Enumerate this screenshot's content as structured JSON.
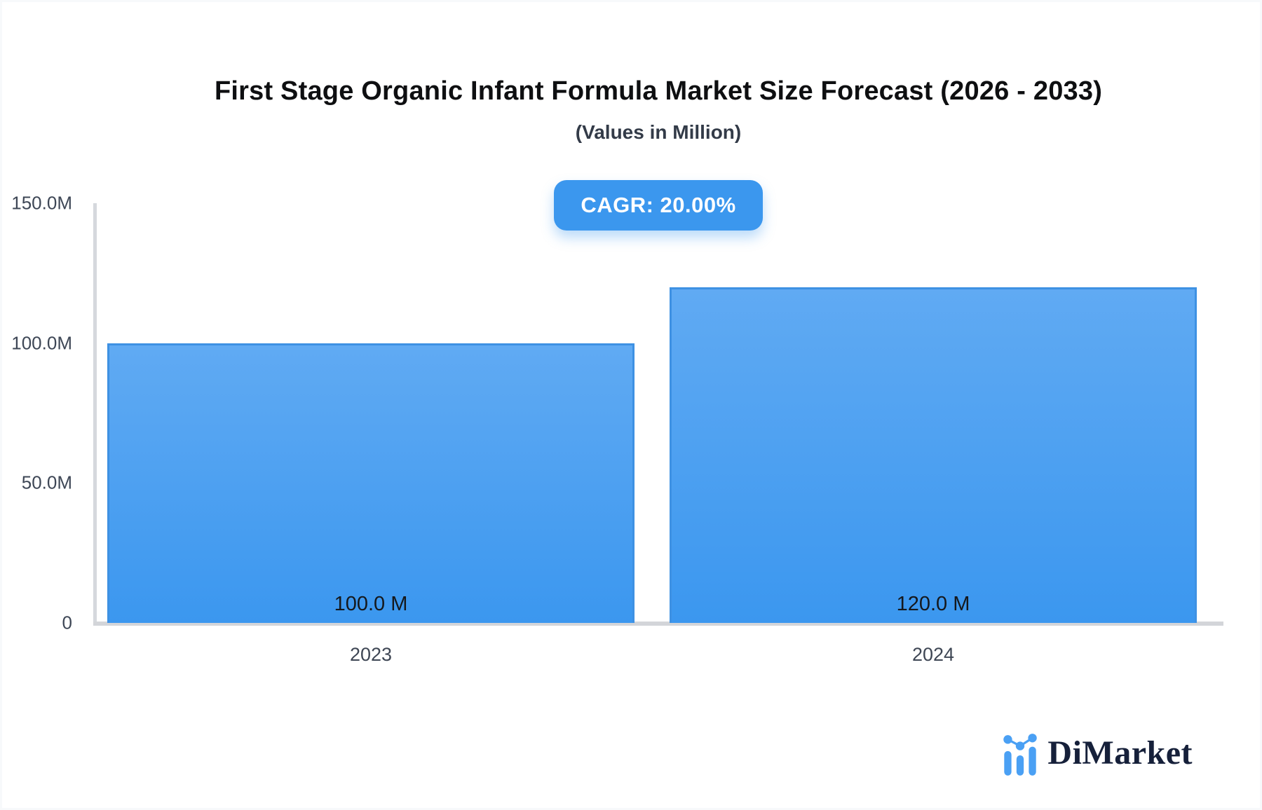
{
  "page": {
    "background": "#ffffff",
    "border_color": "#f7f9fb"
  },
  "header": {
    "title": "First Stage Organic Infant Formula Market Size Forecast (2026 - 2033)",
    "subtitle": "(Values in Million)"
  },
  "badge": {
    "label": "CAGR: 20.00%",
    "background": "#3b97ee",
    "text_color": "#ffffff"
  },
  "chart_data": {
    "type": "bar",
    "title": "First Stage Organic Infant Formula Market Size Forecast (2026 - 2033)",
    "subtitle": "(Values in Million)",
    "unit": "Million",
    "cagr_percent": 20.0,
    "categories": [
      "2023",
      "2024"
    ],
    "values": [
      100.0,
      120.0
    ],
    "bars": [
      {
        "category": "2023",
        "value": 100.0,
        "label": "100.0 M"
      },
      {
        "category": "2024",
        "value": 120.0,
        "label": "120.0 M"
      }
    ],
    "y_axis": {
      "ticks": [
        {
          "label": "150.0M",
          "value": 150,
          "dash": false
        },
        {
          "label": "100.0M",
          "value": 100,
          "dash": false
        },
        {
          "label": "50.0M",
          "value": 50,
          "dash": true
        },
        {
          "label": "0",
          "value": 0,
          "dash": true
        }
      ]
    },
    "ylim": [
      0,
      150
    ],
    "grid": false,
    "legend": false,
    "style": {
      "bar_gradient_top": "#60aaf3",
      "bar_gradient_bottom": "#3b97ef",
      "bar_border": "#3e91e3",
      "axis_line_color": "#d5d8dd",
      "baseline_color": "#d3d5d9"
    }
  },
  "branding": {
    "name": "DiMarket",
    "icon": "bar-line-chart-logo",
    "icon_color": "#4aa0f4",
    "text_color": "#16203a"
  }
}
